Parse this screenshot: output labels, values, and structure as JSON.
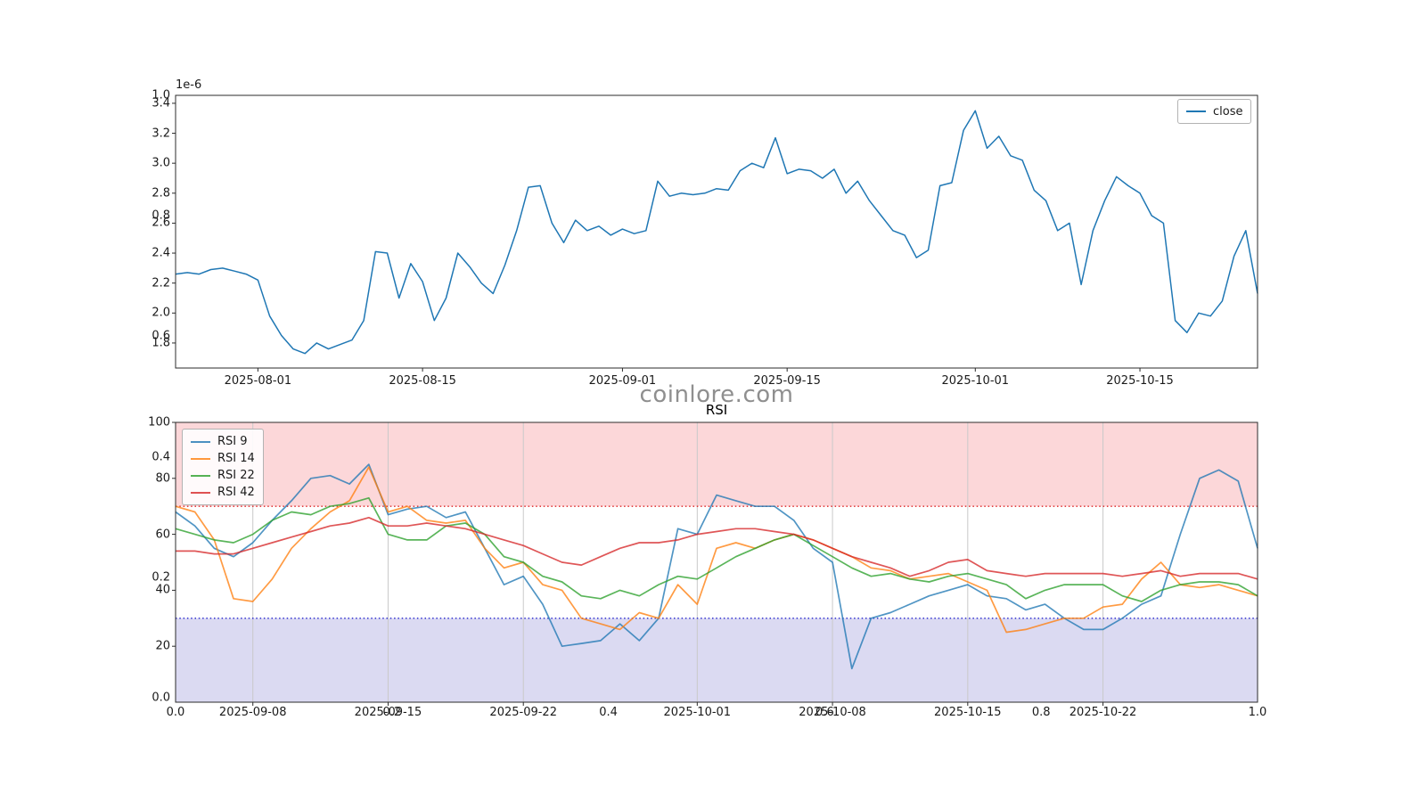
{
  "watermark": "coinlore.com",
  "phantom_axis": {
    "xticks": [
      "0.0",
      "0.2",
      "0.4",
      "0.6",
      "0.8",
      "1.0"
    ],
    "yticks": [
      "1.0",
      "0.8",
      "0.6",
      "0.4",
      "0.2",
      "0.0"
    ]
  },
  "chart_data": [
    {
      "type": "line",
      "title": "",
      "offset_text": "1e-6",
      "x_unit": "day",
      "x_start": "2025-07-25",
      "x_end": "2025-10-25",
      "ylim": [
        1.633,
        3.453
      ],
      "grid": false,
      "legend_position": "upper right",
      "yticks": [
        {
          "label": "3.4",
          "value": 3.4
        },
        {
          "label": "3.2",
          "value": 3.2
        },
        {
          "label": "3.0",
          "value": 3.0
        },
        {
          "label": "2.8",
          "value": 2.8
        },
        {
          "label": "2.6",
          "value": 2.6
        },
        {
          "label": "2.4",
          "value": 2.4
        },
        {
          "label": "2.2",
          "value": 2.2
        },
        {
          "label": "2.0",
          "value": 2.0
        },
        {
          "label": "1.8",
          "value": 1.8
        }
      ],
      "xticks": [
        {
          "label": "2025-08-01",
          "index": 7
        },
        {
          "label": "2025-08-15",
          "index": 21
        },
        {
          "label": "2025-09-01",
          "index": 38
        },
        {
          "label": "2025-09-15",
          "index": 52
        },
        {
          "label": "2025-10-01",
          "index": 68
        },
        {
          "label": "2025-10-15",
          "index": 82
        }
      ],
      "series": [
        {
          "name": "close",
          "color": "#1f77b4",
          "values": [
            2.26,
            2.27,
            2.26,
            2.29,
            2.3,
            2.28,
            2.26,
            2.22,
            1.98,
            1.85,
            1.76,
            1.73,
            1.8,
            1.76,
            1.79,
            1.82,
            1.95,
            2.41,
            2.4,
            2.1,
            2.33,
            2.21,
            1.95,
            2.1,
            2.4,
            2.31,
            2.2,
            2.13,
            2.32,
            2.55,
            2.84,
            2.85,
            2.6,
            2.47,
            2.62,
            2.55,
            2.58,
            2.52,
            2.56,
            2.53,
            2.55,
            2.88,
            2.78,
            2.8,
            2.79,
            2.8,
            2.83,
            2.82,
            2.95,
            3.0,
            2.97,
            3.17,
            2.93,
            2.96,
            2.95,
            2.9,
            2.96,
            2.8,
            2.88,
            2.75,
            2.65,
            2.55,
            2.52,
            2.37,
            2.42,
            2.85,
            2.87,
            3.22,
            3.35,
            3.1,
            3.18,
            3.05,
            3.02,
            2.82,
            2.75,
            2.55,
            2.6,
            2.19,
            2.55,
            2.75,
            2.91,
            2.85,
            2.8,
            2.65,
            2.6,
            1.95,
            1.87,
            2.0,
            1.98,
            2.08,
            2.38,
            2.55,
            2.13
          ]
        }
      ]
    },
    {
      "type": "line",
      "title": "RSI",
      "x_unit": "day",
      "x_start": "2025-09-04",
      "x_end": "2025-10-30",
      "ylim": [
        0,
        100
      ],
      "grid": true,
      "gridline_color": "#c9c9c9",
      "legend_position": "upper left",
      "overbought_level": 70,
      "oversold_level": 30,
      "overbought_line_color": "#dd2222",
      "oversold_line_color": "#2222cc",
      "overbought_fill": "#fcd7d9",
      "oversold_fill": "#dbdaf2",
      "yticks": [
        {
          "label": "100",
          "value": 100
        },
        {
          "label": "80",
          "value": 80
        },
        {
          "label": "60",
          "value": 60
        },
        {
          "label": "40",
          "value": 40
        },
        {
          "label": "20",
          "value": 20
        }
      ],
      "xticks": [
        {
          "label": "2025-09-08",
          "index": 4
        },
        {
          "label": "2025-09-15",
          "index": 11
        },
        {
          "label": "2025-09-22",
          "index": 18
        },
        {
          "label": "2025-10-01",
          "index": 27
        },
        {
          "label": "2025-10-08",
          "index": 34
        },
        {
          "label": "2025-10-15",
          "index": 41
        },
        {
          "label": "2025-10-22",
          "index": 48
        }
      ],
      "series": [
        {
          "name": "RSI 9",
          "color": "#1f77b4",
          "values": [
            68,
            63,
            55,
            52,
            57,
            65,
            72,
            80,
            81,
            78,
            85,
            67,
            69,
            70,
            66,
            68,
            55,
            42,
            45,
            35,
            20,
            21,
            22,
            28,
            22,
            30,
            62,
            60,
            74,
            72,
            70,
            70,
            65,
            55,
            50,
            12,
            30,
            32,
            35,
            38,
            40,
            42,
            38,
            37,
            33,
            35,
            30,
            26,
            26,
            30,
            35,
            38,
            60,
            80,
            83,
            79,
            55
          ]
        },
        {
          "name": "RSI 14",
          "color": "#ff7f0e",
          "values": [
            70,
            68,
            58,
            37,
            36,
            44,
            55,
            62,
            68,
            72,
            84,
            68,
            70,
            65,
            64,
            65,
            55,
            48,
            50,
            42,
            40,
            30,
            28,
            26,
            32,
            30,
            42,
            35,
            55,
            57,
            55,
            58,
            60,
            58,
            55,
            52,
            48,
            47,
            44,
            45,
            46,
            43,
            40,
            25,
            26,
            28,
            30,
            30,
            34,
            35,
            44,
            50,
            42,
            41,
            42,
            40,
            38
          ]
        },
        {
          "name": "RSI 22",
          "color": "#2ca02c",
          "values": [
            62,
            60,
            58,
            57,
            60,
            65,
            68,
            67,
            70,
            71,
            73,
            60,
            58,
            58,
            63,
            64,
            60,
            52,
            50,
            45,
            43,
            38,
            37,
            40,
            38,
            42,
            45,
            44,
            48,
            52,
            55,
            58,
            60,
            56,
            52,
            48,
            45,
            46,
            44,
            43,
            45,
            46,
            44,
            42,
            37,
            40,
            42,
            42,
            42,
            38,
            36,
            40,
            42,
            43,
            43,
            42,
            38
          ]
        },
        {
          "name": "RSI 42",
          "color": "#d62728",
          "values": [
            54,
            54,
            53,
            53,
            55,
            57,
            59,
            61,
            63,
            64,
            66,
            63,
            63,
            64,
            63,
            62,
            60,
            58,
            56,
            53,
            50,
            49,
            52,
            55,
            57,
            57,
            58,
            60,
            61,
            62,
            62,
            61,
            60,
            58,
            55,
            52,
            50,
            48,
            45,
            47,
            50,
            51,
            47,
            46,
            45,
            46,
            46,
            46,
            46,
            45,
            46,
            47,
            45,
            46,
            46,
            46,
            44
          ]
        }
      ]
    }
  ]
}
